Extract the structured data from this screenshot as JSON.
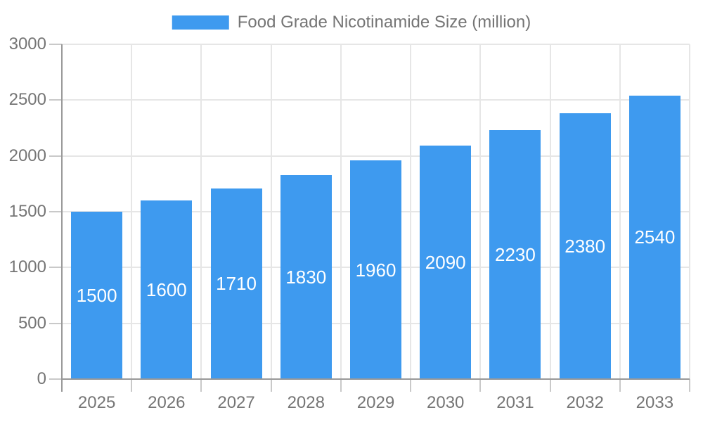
{
  "chart_data": {
    "type": "bar",
    "title": "Food Grade Nicotinamide Size (million)",
    "legend_position": "top",
    "categories": [
      "2025",
      "2026",
      "2027",
      "2028",
      "2029",
      "2030",
      "2031",
      "2032",
      "2033"
    ],
    "series": [
      {
        "name": "Food Grade Nicotinamide Size (million)",
        "values": [
          1500,
          1600,
          1710,
          1830,
          1960,
          2090,
          2230,
          2380,
          2540
        ]
      }
    ],
    "xlabel": "",
    "ylabel": "",
    "ylim": [
      0,
      3000
    ],
    "yticks": [
      0,
      500,
      1000,
      1500,
      2000,
      2500,
      3000
    ],
    "grid": true,
    "value_labels": "inside-center"
  },
  "colors": {
    "bar": "#3E9AEF",
    "axis_text": "#757575",
    "grid": "#e6e6e6",
    "tick": "#c9c9c9",
    "axis_line": "#999999",
    "value_label": "#ffffff",
    "background": "#ffffff"
  }
}
